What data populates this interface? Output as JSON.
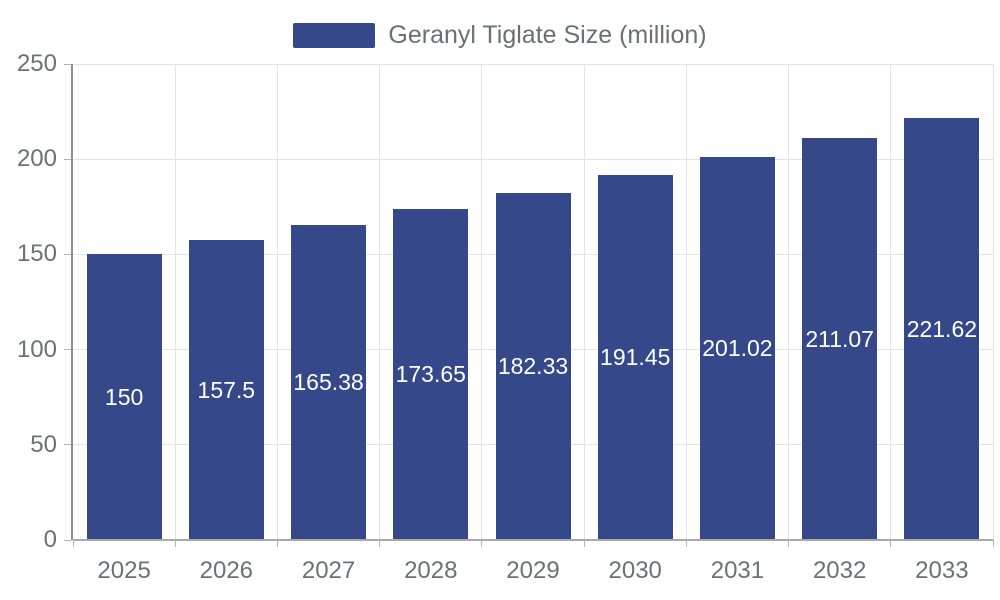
{
  "legend": {
    "items": [
      {
        "label": "Geranyl Tiglate Size (million)",
        "color": "#35488A"
      }
    ]
  },
  "chart_data": {
    "type": "bar",
    "title": "",
    "categories": [
      "2025",
      "2026",
      "2027",
      "2028",
      "2029",
      "2030",
      "2031",
      "2032",
      "2033"
    ],
    "series": [
      {
        "name": "Geranyl Tiglate Size (million)",
        "values": [
          150,
          157.5,
          165.38,
          173.65,
          182.33,
          191.45,
          201.02,
          211.07,
          221.62
        ]
      }
    ],
    "value_labels": [
      "150",
      "157.5",
      "165.38",
      "173.65",
      "182.33",
      "191.45",
      "201.02",
      "211.07",
      "221.62"
    ],
    "xlabel": "",
    "ylabel": "",
    "ylim": [
      0,
      250
    ],
    "yticks": [
      0,
      50,
      100,
      150,
      200,
      250
    ],
    "grid": true,
    "legend_position": "top"
  },
  "colors": {
    "bar": "#35488A",
    "bar_label": "#FFFFFF",
    "grid_line": "#E3E3E3",
    "y_axis_line": "#8F8F8F",
    "x_axis_line": "#A9A9A9",
    "tick": "#B3B3B3",
    "axis_label": "#6E7079",
    "legend_text": "#6B6F76",
    "background": "#FFFFFF"
  }
}
